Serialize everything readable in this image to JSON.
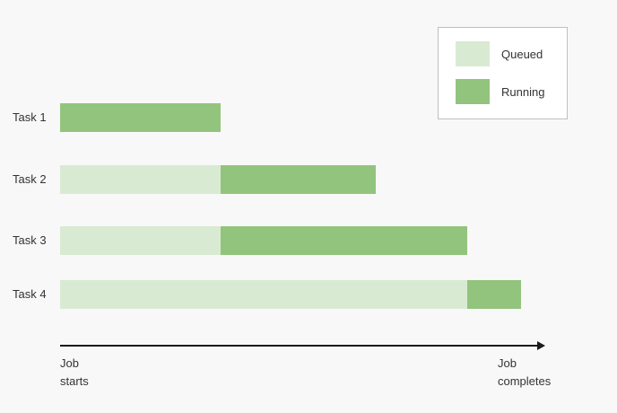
{
  "page": {
    "background": "#f8f8f8"
  },
  "colors": {
    "queued": "#d9ead3",
    "running": "#93c47d",
    "text": "#333333",
    "axis": "#1a1a1a",
    "legend_border": "#bfbfbf",
    "legend_background": "#ffffff"
  },
  "legend": {
    "items": [
      {
        "label": "Queued",
        "color": "queued"
      },
      {
        "label": "Running",
        "color": "running"
      }
    ]
  },
  "axis": {
    "start_label": "Job\nstarts",
    "end_label": "Job\ncompletes"
  },
  "chart_data": {
    "type": "bar",
    "subtype": "gantt",
    "title": "",
    "xlabel": "",
    "ylabel": "",
    "xlim": [
      0,
      100
    ],
    "x_axis_annotations": {
      "start": "Job starts",
      "end": "Job completes"
    },
    "legend_entries": [
      "Queued",
      "Running"
    ],
    "legend_position": "top-right",
    "grid": false,
    "tasks": [
      {
        "label": "Task 1",
        "queued": [
          0,
          0
        ],
        "running": [
          0,
          33
        ]
      },
      {
        "label": "Task 2",
        "queued": [
          0,
          33
        ],
        "running": [
          33,
          65
        ]
      },
      {
        "label": "Task 3",
        "queued": [
          0,
          33
        ],
        "running": [
          33,
          84
        ]
      },
      {
        "label": "Task 4",
        "queued": [
          0,
          84
        ],
        "running": [
          84,
          95
        ]
      }
    ]
  }
}
